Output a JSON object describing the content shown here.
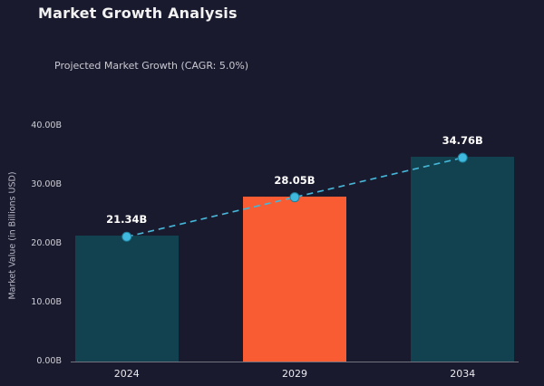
{
  "page": {
    "background": "#1a1a2e"
  },
  "header": {
    "title": "Market Growth Analysis",
    "subtitle": "Projected Market Growth (CAGR: 5.0%)"
  },
  "chart_data": {
    "type": "bar",
    "title": "Market Growth Analysis",
    "subtitle": "Projected Market Growth (CAGR: 5.0%)",
    "categories": [
      "2024",
      "2029",
      "2034"
    ],
    "values": [
      21.34,
      28.05,
      34.76
    ],
    "value_labels": [
      "21.34B",
      "28.05B",
      "34.76B"
    ],
    "bar_colors": [
      "#12414f",
      "#f95b33",
      "#12414f"
    ],
    "trend_line": {
      "style": "dashed",
      "color": "#46b6d8",
      "markers": true,
      "marker_color": "#3fb9dd"
    },
    "xlabel": "",
    "ylabel": "Market Value (in Billions USD)",
    "ylim": [
      0,
      40
    ],
    "y_ticks": [
      {
        "value": 0,
        "label": "0.00B"
      },
      {
        "value": 10,
        "label": "10.00B"
      },
      {
        "value": 20,
        "label": "20.00B"
      },
      {
        "value": 30,
        "label": "30.00B"
      },
      {
        "value": 40,
        "label": "40.00B"
      }
    ],
    "grid": false,
    "legend": false
  }
}
